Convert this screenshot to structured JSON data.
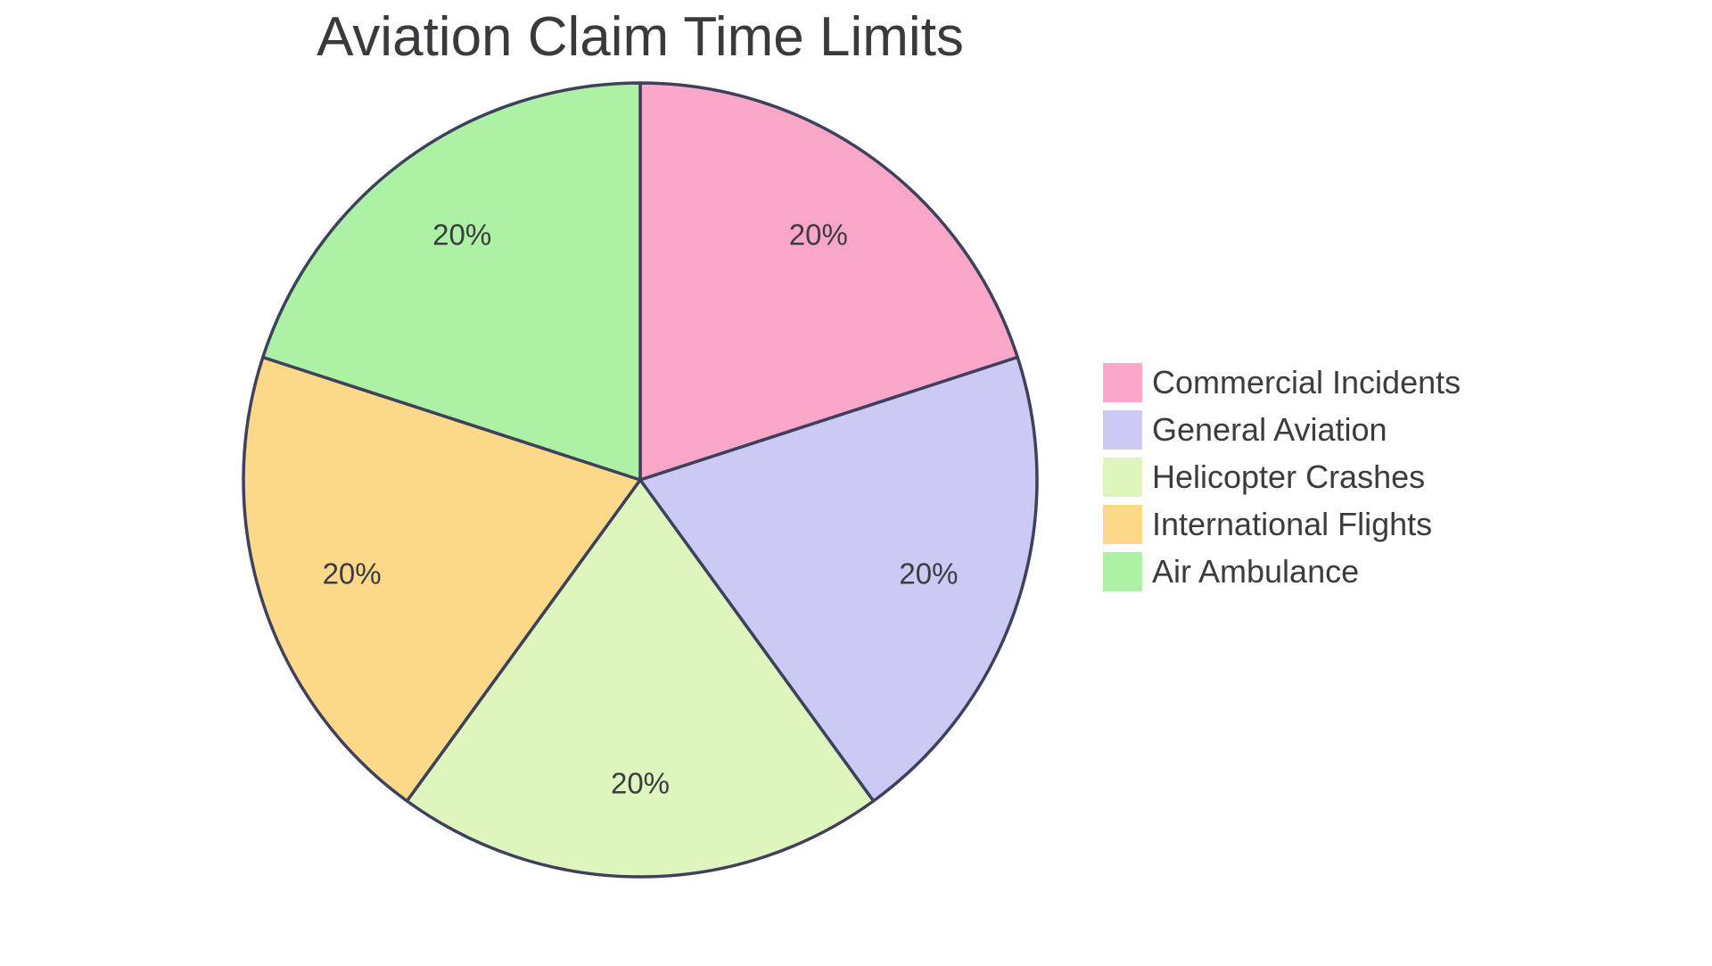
{
  "title": "Aviation Claim Time Limits",
  "chart_data": {
    "type": "pie",
    "title": "Aviation Claim Time Limits",
    "categories": [
      "Commercial Incidents",
      "General Aviation",
      "Helicopter Crashes",
      "International Flights",
      "Air Ambulance"
    ],
    "values": [
      20,
      20,
      20,
      20,
      20
    ],
    "unit": "percent",
    "slice_labels": [
      "20%",
      "20%",
      "20%",
      "20%",
      "20%"
    ],
    "colors": [
      "#F9A6C9",
      "#CACAF5",
      "#DEF5BE",
      "#FCD889",
      "#ACF1A4"
    ],
    "slice_border_color": "#3D415C",
    "label_color": "#3C3C42",
    "start_angle_deg": 0,
    "direction": "clockwise",
    "legend_position": "right",
    "legend": [
      {
        "label": "Commercial Incidents",
        "color": "#F9A6C9"
      },
      {
        "label": "General Aviation",
        "color": "#CACAF5"
      },
      {
        "label": "Helicopter Crashes",
        "color": "#DEF5BE"
      },
      {
        "label": "International Flights",
        "color": "#FCD889"
      },
      {
        "label": "Air Ambulance",
        "color": "#ACF1A4"
      }
    ]
  }
}
